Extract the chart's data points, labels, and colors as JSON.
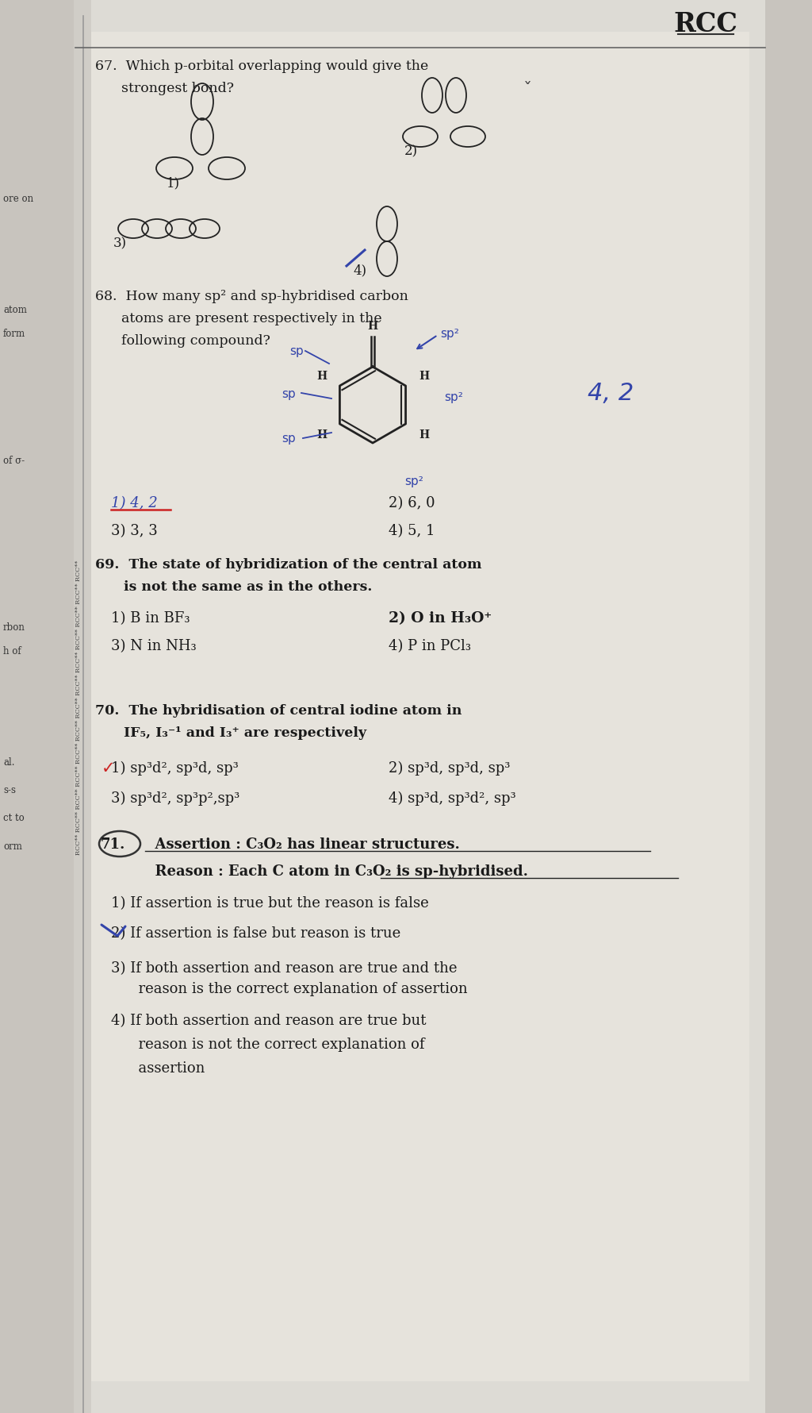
{
  "bg_color": "#c8c4be",
  "paper_color": "#e8e6e0",
  "rcc_color": "#1a1a1a",
  "text_color": "#1a1a1a",
  "blue_pen": "#3344aa",
  "red_mark": "#cc2222",
  "sidebar_color": "#d0ccc6",
  "title": "RCC",
  "q67_line1": "67.  Which p-orbital overlapping would give the",
  "q67_line2": "      strongest bond?",
  "q68_line1": "68.  How many sp² and sp-hybridised carbon",
  "q68_line2": "      atoms are present respectively in the",
  "q68_line3": "      following compound?",
  "q68_opts": [
    "1) 4, 2",
    "2) 6, 0",
    "3) 3, 3",
    "4) 5, 1"
  ],
  "q69_line1": "69.  The state of hybridization of the central atom",
  "q69_line2": "      is not the same as in the others.",
  "q69_opts": [
    "1) B in BF₃",
    "2) O in H₃O⁺",
    "3) N in NH₃",
    "4) P in PCl₃"
  ],
  "q70_line1": "70.  The hybridisation of central iodine atom in",
  "q70_line2": "      IF₅, I₃⁻¹ and I₃⁺ are respectively",
  "q70_opts": [
    "1) sp³d², sp³d, sp³",
    "2) sp³d, sp³d, sp³",
    "3) sp³d², sp³p²,sp³",
    "4) sp³d, sp³d², sp³"
  ],
  "q71_assert": "Assertion : C₃O₂ has linear structures.",
  "q71_reason": "Reason : Each C atom in C₃O₂ is sp-hybridised.",
  "q71_opts": [
    "1) If assertion is true but the reason is false",
    "2) If assertion is false but reason is true",
    "3) If both assertion and reason are true and the",
    "      reason is the correct explanation of assertion",
    "4) If both assertion and reason are true but",
    "      reason is not the correct explanation of",
    "      assertion"
  ],
  "left_labels": [
    [
      "ore on",
      1530
    ],
    [
      "atom",
      1390
    ],
    [
      "form",
      1360
    ],
    [
      "of σ-",
      1200
    ],
    [
      "rbon",
      990
    ],
    [
      "h of",
      960
    ],
    [
      "al.",
      820
    ],
    [
      "s-s",
      785
    ],
    [
      "ct to",
      750
    ],
    [
      "orm",
      715
    ]
  ]
}
